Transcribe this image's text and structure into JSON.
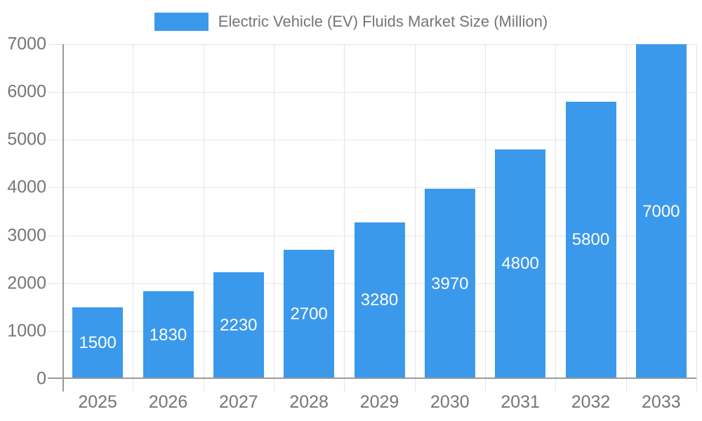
{
  "legend": {
    "label": "Electric Vehicle (EV) Fluids Market Size (Million)"
  },
  "chart_data": {
    "type": "bar",
    "title": "Electric Vehicle (EV) Fluids Market Size (Million)",
    "categories": [
      "2025",
      "2026",
      "2027",
      "2028",
      "2029",
      "2030",
      "2031",
      "2032",
      "2033"
    ],
    "values": [
      1500,
      1830,
      2230,
      2700,
      3280,
      3970,
      4800,
      5800,
      7000
    ],
    "series_name": "Electric Vehicle (EV) Fluids Market Size (Million)",
    "xlabel": "",
    "ylabel": "",
    "ylim": [
      0,
      7000
    ],
    "y_ticks": [
      0,
      1000,
      2000,
      3000,
      4000,
      5000,
      6000,
      7000
    ],
    "grid": true,
    "legend_position": "top",
    "value_label_position": "center-inside",
    "colors": {
      "bar": "#3B99EC",
      "value_label": "#ffffff",
      "grid": "#e4e4e4",
      "axis": "#9a9a9a",
      "tick_text": "#757575",
      "legend_text": "#757575",
      "background": "#ffffff"
    }
  }
}
